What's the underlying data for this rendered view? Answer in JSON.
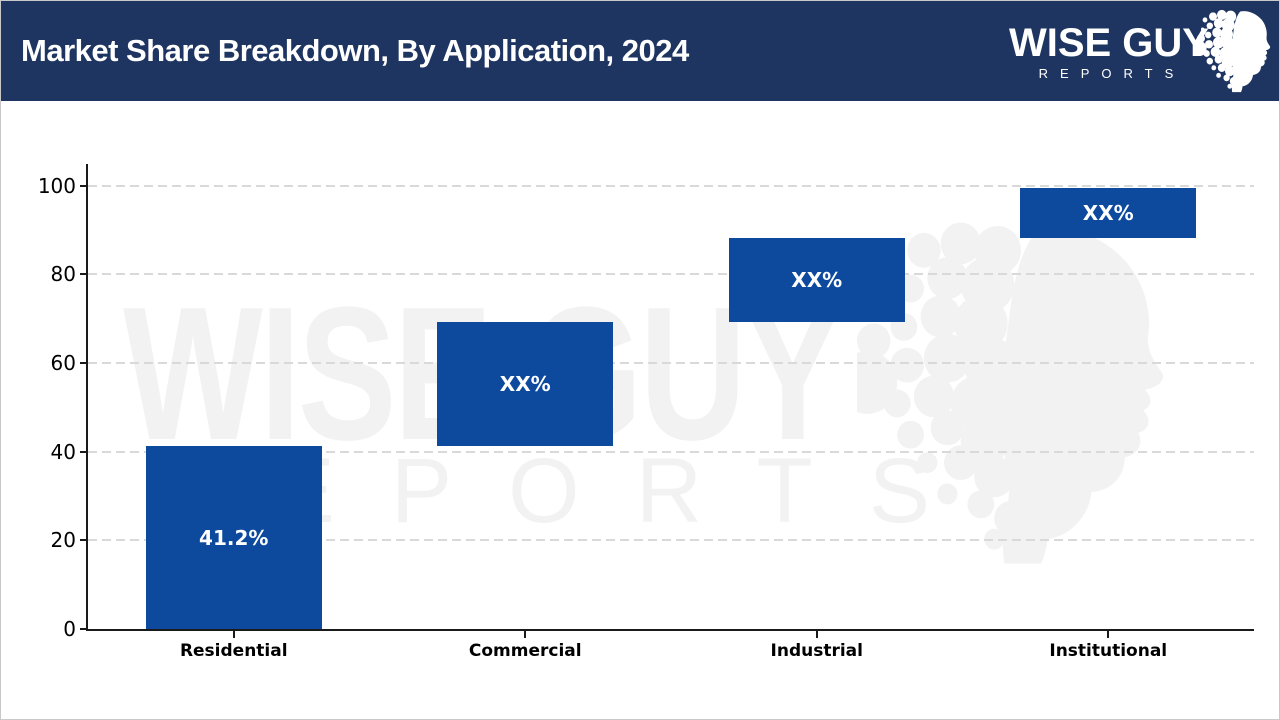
{
  "page": {
    "background": "#ffffff",
    "border_color": "#c9c9c9"
  },
  "header": {
    "background": "#1e3561",
    "title": "Market Share Breakdown, By Application, 2024",
    "brand": {
      "line1": "WISE GUY",
      "line2": "REPORTS"
    }
  },
  "watermark": {
    "line1": "WISE GUY",
    "line2": "REPORTS",
    "color": "#f2f2f2"
  },
  "chart_data": {
    "type": "bar",
    "subtype": "floating-waterfall",
    "title": "Market Share Breakdown, By Application, 2024",
    "categories": [
      "Residential",
      "Commercial",
      "Industrial",
      "Institutional"
    ],
    "series": [
      {
        "name": "Market share (%)",
        "segments": [
          [
            0,
            41.2
          ],
          [
            41.2,
            69.3
          ],
          [
            69.3,
            88.2
          ],
          [
            88.2,
            99.5
          ]
        ]
      }
    ],
    "bar_labels": [
      "41.2%",
      "XX%",
      "XX%",
      "XX%"
    ],
    "yticks": [
      0,
      20,
      40,
      60,
      80,
      100
    ],
    "ylim": [
      0,
      105
    ],
    "xlabel": "",
    "ylabel": "",
    "legend_position": "none",
    "grid": {
      "axis": "y",
      "style": "dashed",
      "color": "#d9d9d9"
    },
    "bar_color": "#0d4a9e",
    "bar_label_color": "#ffffff",
    "axis_color": "#1a1a1a",
    "tick_label_color": "#000000"
  }
}
